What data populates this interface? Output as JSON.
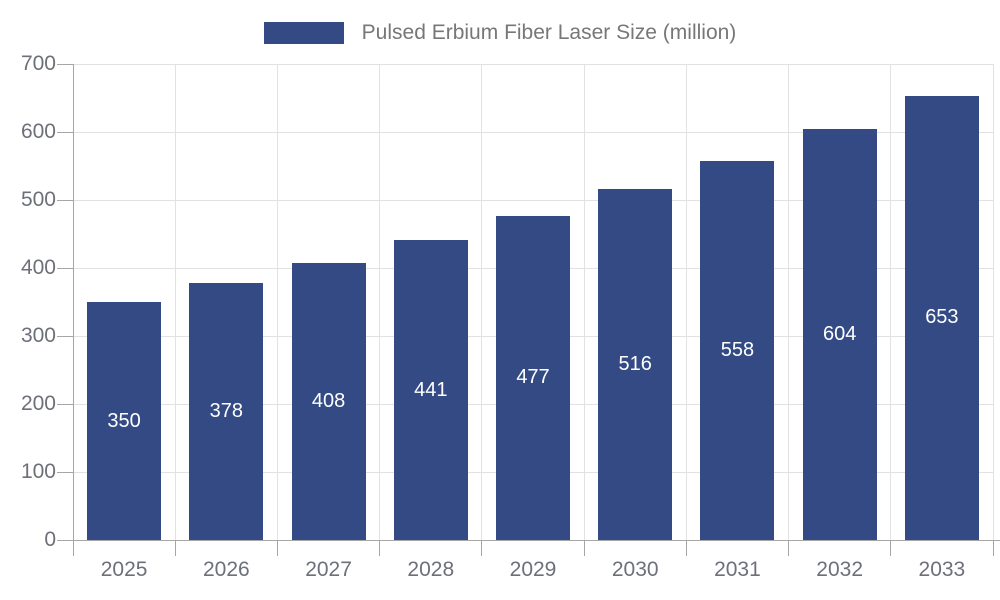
{
  "legend": {
    "label": "Pulsed Erbium Fiber Laser Size (million)"
  },
  "chart_data": {
    "type": "bar",
    "title": "Pulsed Erbium Fiber Laser Size (million)",
    "categories": [
      "2025",
      "2026",
      "2027",
      "2028",
      "2029",
      "2030",
      "2031",
      "2032",
      "2033"
    ],
    "series": [
      {
        "name": "Pulsed Erbium Fiber Laser Size (million)",
        "values": [
          350,
          378,
          408,
          441,
          477,
          516,
          558,
          604,
          653
        ]
      }
    ],
    "xlabel": "",
    "ylabel": "",
    "ylim": [
      0,
      700
    ],
    "ytick_step": 100,
    "grid": true,
    "legend_position": "top-center",
    "value_labels": "inside-center",
    "colors": {
      "bar": "#334A84",
      "value_label": "#ffffff",
      "axis": "#a6a6a6",
      "grid": "#e2e2e2",
      "tick_label": "#6e7079",
      "legend_text": "#777777",
      "background": "#ffffff"
    }
  }
}
